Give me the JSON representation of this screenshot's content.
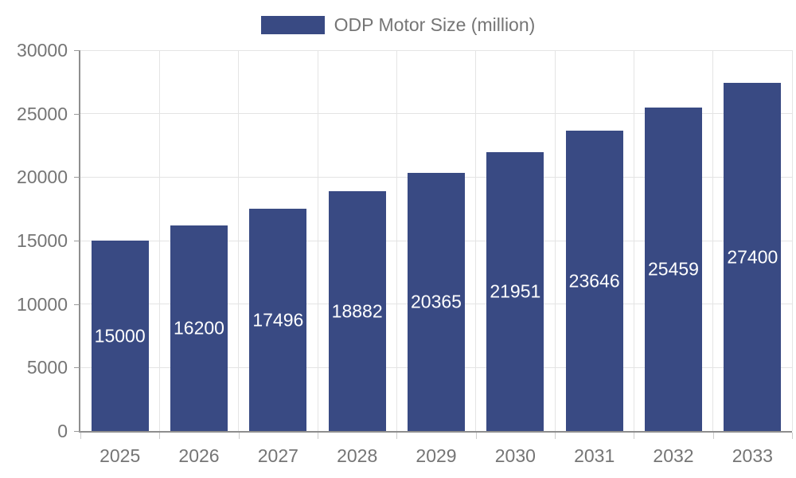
{
  "chart_data": {
    "type": "bar",
    "title": "",
    "legend": "ODP Motor Size (million)",
    "legend_position": "top-center",
    "categories": [
      "2025",
      "2026",
      "2027",
      "2028",
      "2029",
      "2030",
      "2031",
      "2032",
      "2033"
    ],
    "values": [
      15000,
      16200,
      17496,
      18882,
      20365,
      21951,
      23646,
      25459,
      27400
    ],
    "ylim": [
      0,
      30000
    ],
    "yticks": [
      0,
      5000,
      10000,
      15000,
      20000,
      25000,
      30000
    ],
    "grid": true,
    "colors": {
      "bar": "#394a83",
      "value_label": "#ffffff",
      "tick_text": "#757575",
      "grid_line": "#e4e4e4",
      "axis_line": "#8e8e8e"
    }
  }
}
